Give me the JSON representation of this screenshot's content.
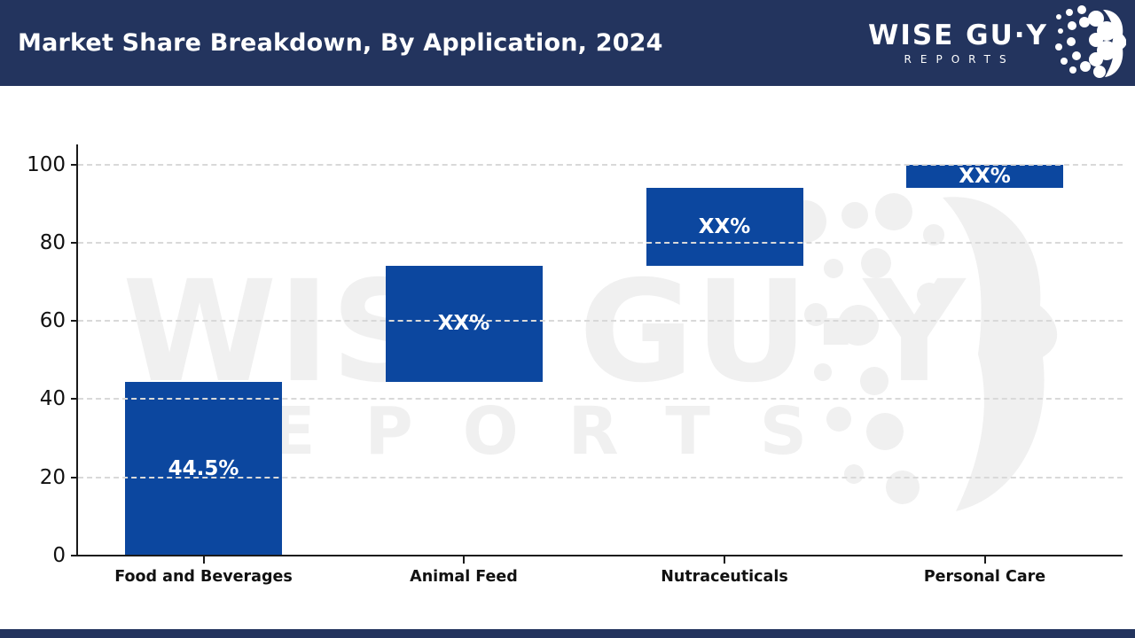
{
  "header": {
    "title": "Market Share Breakdown, By Application, 2024",
    "logo": {
      "wordmark": "WISE GU·Y",
      "subtext": "REPORTS"
    }
  },
  "watermark": {
    "wordmark": "WISE GU·Y",
    "subtext": "REPORTS"
  },
  "theme": {
    "header_bg": "#23345e",
    "footer_bg": "#23345e",
    "bar_blue": "#0c479f",
    "bar_label_white": "#ffffff",
    "grid_gray": "#d9d9d9",
    "axis_black": "#1a1a1a",
    "watermark_gray": "#f0f0f0"
  },
  "chart_data": {
    "type": "bar",
    "subtype": "waterfall",
    "title": "Market Share Breakdown, By Application, 2024",
    "categories": [
      "Food and Beverages",
      "Animal Feed",
      "Nutraceuticals",
      "Personal Care"
    ],
    "series": [
      {
        "name": "Market Share (%)",
        "segments": [
          {
            "category": "Food and Beverages",
            "start": 0,
            "end": 44.5,
            "label": "44.5%"
          },
          {
            "category": "Animal Feed",
            "start": 44.5,
            "end": 74,
            "label": "XX%"
          },
          {
            "category": "Nutraceuticals",
            "start": 74,
            "end": 94,
            "label": "XX%"
          },
          {
            "category": "Personal Care",
            "start": 94,
            "end": 100,
            "label": "XX%"
          }
        ]
      }
    ],
    "xlabel": "",
    "ylabel": "",
    "ylim": [
      0,
      100
    ],
    "yticks": [
      0,
      20,
      40,
      60,
      80,
      100
    ],
    "grid": "horizontal-dashed",
    "legend": "none"
  }
}
